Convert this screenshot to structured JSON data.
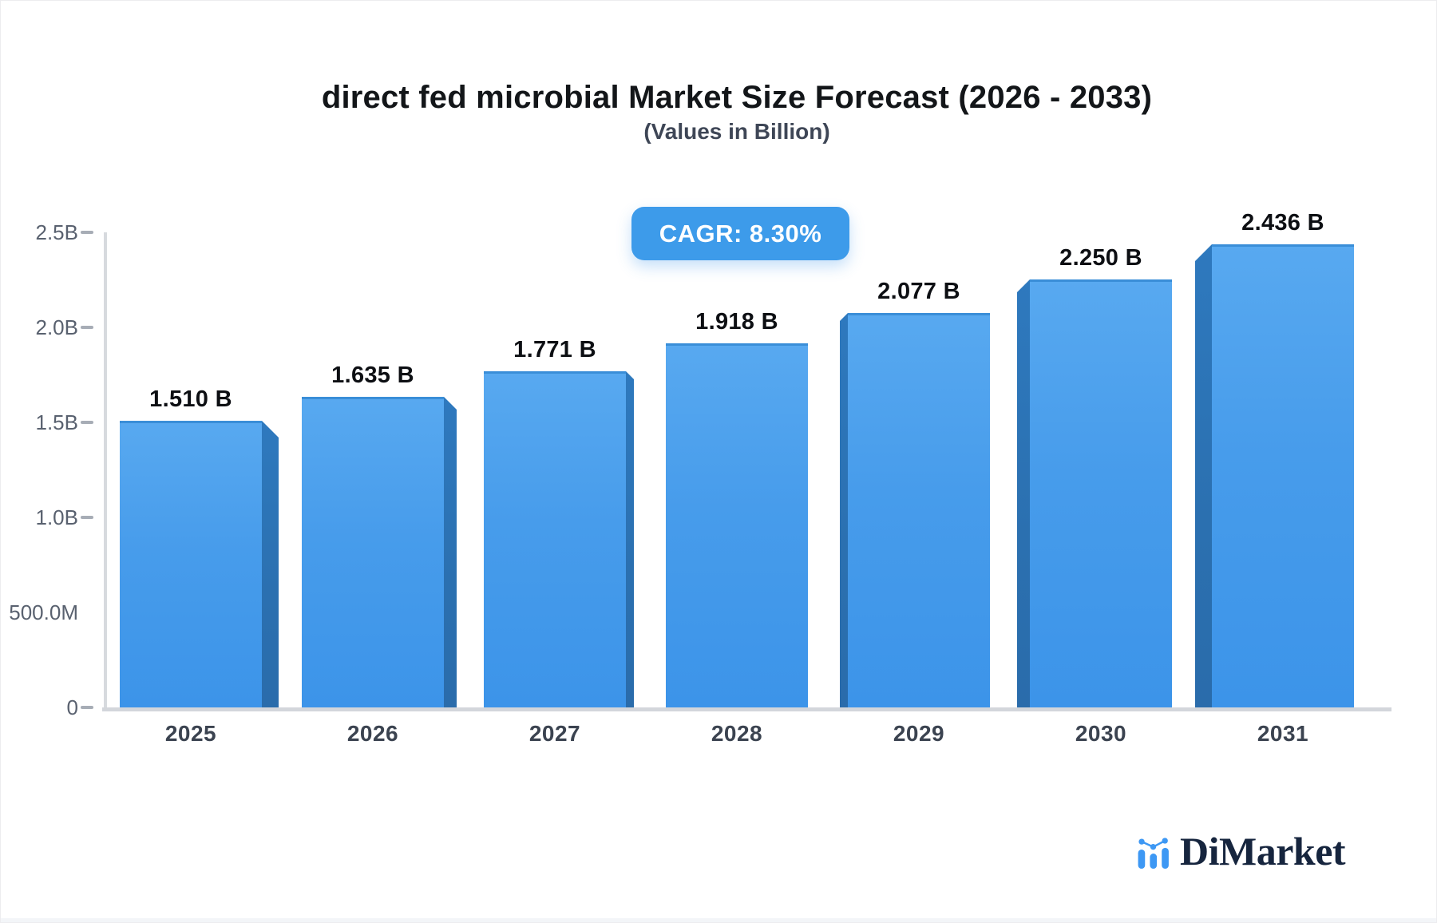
{
  "title": "direct fed microbial Market Size Forecast (2026 - 2033)",
  "subtitle": "(Values in Billion)",
  "badge": {
    "label": "CAGR: 8.30%",
    "color": "#3d9bea"
  },
  "chart_data": {
    "type": "bar",
    "title": "direct fed microbial Market Size Forecast (2026 - 2033)",
    "subtitle": "(Values in Billion)",
    "categories": [
      "2025",
      "2026",
      "2027",
      "2028",
      "2029",
      "2030",
      "2031"
    ],
    "values": [
      1.51,
      1.635,
      1.771,
      1.918,
      2.077,
      2.25,
      2.436
    ],
    "value_labels": [
      "1.510 B",
      "1.635 B",
      "1.771 B",
      "1.918 B",
      "2.077 B",
      "2.250 B",
      "2.436 B"
    ],
    "xlabel": "",
    "ylabel": "",
    "ylim": [
      0,
      2.5
    ],
    "grid": false,
    "legend": false,
    "bar_color": "#429aec",
    "bar_side_color": "#2b70b0",
    "y_ticks": [
      {
        "label": "2.5B",
        "value": 2.5,
        "tick": true
      },
      {
        "label": "2.0B",
        "value": 2.0,
        "tick": true
      },
      {
        "label": "1.5B",
        "value": 1.5,
        "tick": true
      },
      {
        "label": "1.0B",
        "value": 1.0,
        "tick": true
      },
      {
        "label": "500.0M",
        "value": 0.5,
        "tick": false
      },
      {
        "label": "0",
        "value": 0,
        "tick": true
      }
    ]
  },
  "logo": {
    "brand": "DiMarket",
    "icon": "bar-chart-logo-icon",
    "icon_color": "#3d98f4",
    "text_color": "#16253e"
  }
}
